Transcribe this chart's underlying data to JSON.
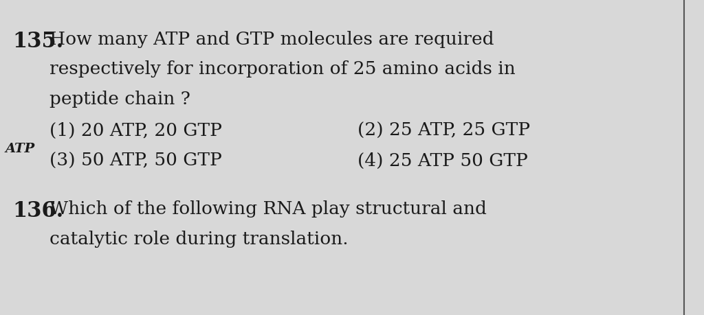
{
  "background_color": "#d8d8d8",
  "text_color": "#1a1a1a",
  "q135_number": "135.",
  "q135_line1": "How many ATP and GTP molecules are required",
  "q135_line2": "respectively for incorporation of 25 amino acids in",
  "q135_line3": "peptide chain ?",
  "opt1": "(1) 20 ATP, 20 GTP",
  "opt2": "(2) 25 ATP, 25 GTP",
  "opt3": "(3) 50 ATP, 50 GTP",
  "opt4": "(4) 25 ATP 50 GTP",
  "atp_label": "ATP",
  "q136_number": "136.",
  "q136_line1": "Which of the following RNA play structural and",
  "q136_line2": "catalytic role during translation.",
  "font_size_number": 22,
  "font_size_text": 19,
  "font_size_option": 19,
  "font_size_atp": 14
}
